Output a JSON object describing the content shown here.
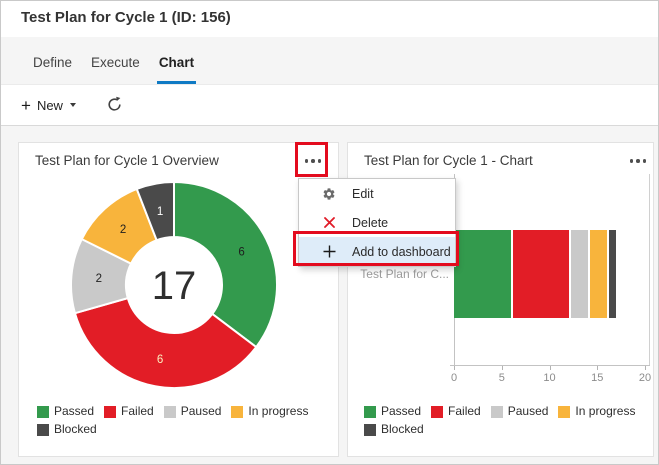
{
  "header": {
    "title": "Test Plan for Cycle 1 (ID: 156)"
  },
  "tabs": {
    "items": [
      {
        "label": "Define"
      },
      {
        "label": "Execute"
      },
      {
        "label": "Chart"
      }
    ],
    "active": "Chart"
  },
  "toolbar": {
    "new_label": "New"
  },
  "tab_accent_color": "#0f7ac4",
  "annotation_color": "#e30b1e",
  "menu_highlight_color": "#deecf9",
  "status_colors": {
    "passed": "#339a4d",
    "failed": "#e21d26",
    "paused": "#c9c9c9",
    "in_progress": "#f8b43c",
    "blocked": "#4a4a4a"
  },
  "left_widget": {
    "title": "Test Plan for Cycle 1 Overview",
    "menu_icon": "ellipsis-icon"
  },
  "right_widget": {
    "title": "Test Plan for Cycle 1 - Chart",
    "category_label": "Test Plan for C...",
    "menu_icon": "ellipsis-icon"
  },
  "context_menu": {
    "items": [
      {
        "label": "Edit",
        "icon": "gear-icon",
        "highlighted": false
      },
      {
        "label": "Delete",
        "icon": "delete-x-icon",
        "highlighted": false
      },
      {
        "label": "Add to dashboard",
        "icon": "plus-icon",
        "highlighted": true
      }
    ]
  },
  "chart_data": [
    {
      "type": "pie",
      "variant": "donut",
      "title": "Test Plan for Cycle 1 Overview",
      "center_total": "17",
      "legend_position": "bottom",
      "series": [
        {
          "name": "Passed",
          "value": 6,
          "color": "#339a4d",
          "label_color": "#1e1e1e"
        },
        {
          "name": "Failed",
          "value": 6,
          "color": "#e21d26",
          "label_color": "#fbf0c0"
        },
        {
          "name": "Paused",
          "value": 2,
          "color": "#c9c9c9",
          "label_color": "#1e1e1e"
        },
        {
          "name": "In progress",
          "value": 2,
          "color": "#f8b43c",
          "label_color": "#1e1e1e"
        },
        {
          "name": "Blocked",
          "value": 1,
          "color": "#4a4a4a",
          "label_color": "#ffffff"
        }
      ]
    },
    {
      "type": "bar",
      "variant": "horizontal-stacked",
      "title": "Test Plan for Cycle 1 - Chart",
      "categories": [
        "Test Plan for C..."
      ],
      "xlim": [
        0,
        20
      ],
      "xticks": [
        0,
        5,
        10,
        15,
        20
      ],
      "legend_position": "bottom",
      "series": [
        {
          "name": "Passed",
          "value": 6,
          "color": "#339a4d"
        },
        {
          "name": "Failed",
          "value": 6,
          "color": "#e21d26"
        },
        {
          "name": "Paused",
          "value": 2,
          "color": "#c9c9c9"
        },
        {
          "name": "In progress",
          "value": 2,
          "color": "#f8b43c"
        },
        {
          "name": "Blocked",
          "value": 1,
          "color": "#4a4a4a"
        }
      ]
    }
  ]
}
